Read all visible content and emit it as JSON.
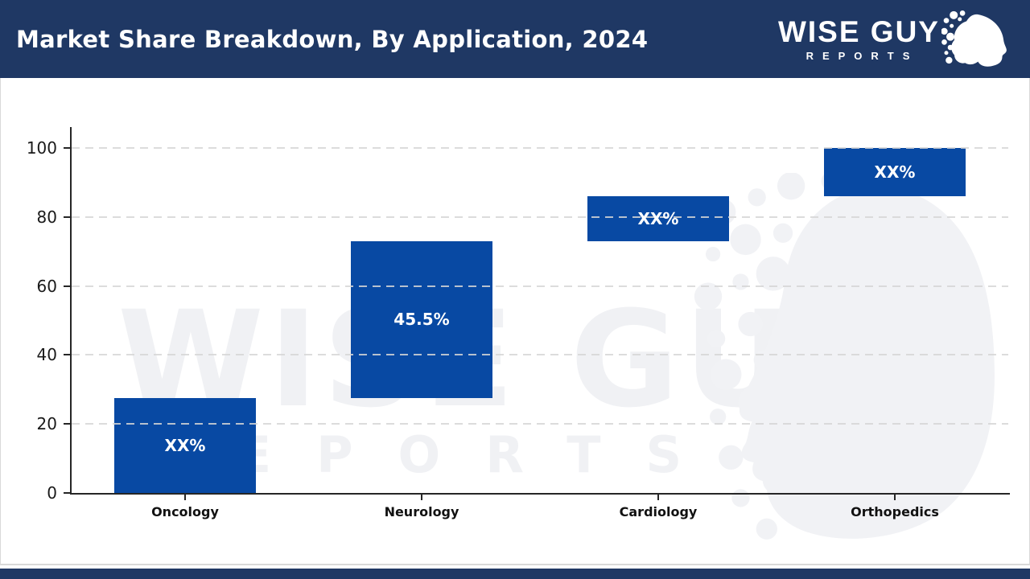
{
  "header": {
    "title": "Market Share Breakdown, By Application, 2024"
  },
  "brand": {
    "wordmark": "WISE GUY",
    "subtext": "REPORTS"
  },
  "watermark": {
    "line1": "WISE GUY",
    "line2": "REPORTS"
  },
  "chart_data": {
    "type": "bar",
    "subtype": "waterfall-floating-bars",
    "title": "Market Share Breakdown, By Application, 2024",
    "categories": [
      "Oncology",
      "Neurology",
      "Cardiology",
      "Orthopedics"
    ],
    "series": [
      {
        "name": "Market share (%)",
        "segments": [
          {
            "category": "Oncology",
            "from": 0,
            "to": 27.5,
            "label": "XX%"
          },
          {
            "category": "Neurology",
            "from": 27.5,
            "to": 73,
            "label": "45.5%"
          },
          {
            "category": "Cardiology",
            "from": 73,
            "to": 86,
            "label": "XX%"
          },
          {
            "category": "Orthopedics",
            "from": 86,
            "to": 100,
            "label": "XX%"
          }
        ]
      }
    ],
    "xlabel": "",
    "ylabel": "",
    "ylim": [
      0,
      100
    ],
    "yticks": [
      0,
      20,
      40,
      60,
      80,
      100
    ],
    "grid": "horizontal-dashed",
    "legend": "none",
    "colors": {
      "bar": "#0849a3",
      "bar_label": "#ffffff",
      "header_bg": "#1f3864",
      "footer_bg": "#1f3864",
      "grid": "#d8d8d8",
      "axis": "#262626",
      "watermark": "#f0f1f4"
    }
  }
}
